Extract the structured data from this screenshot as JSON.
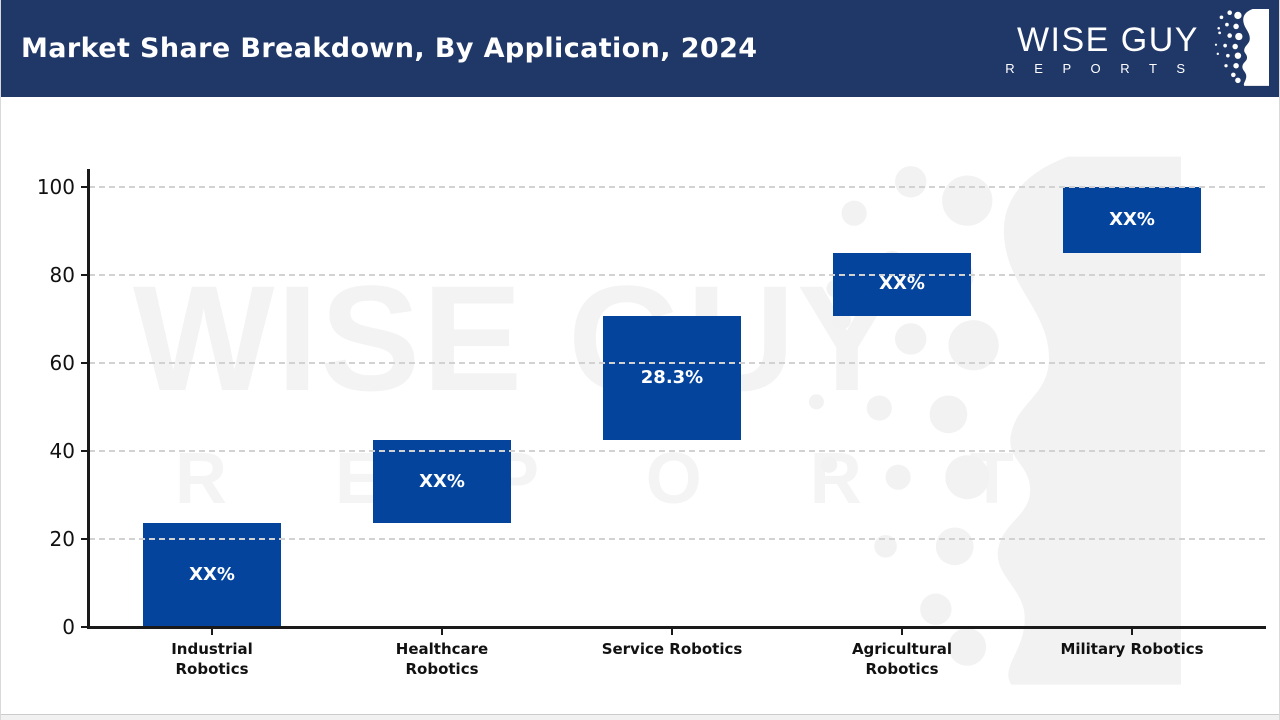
{
  "header": {
    "title": "Market Share Breakdown, By Application, 2024",
    "brand": {
      "wordmark": "WISE GUY",
      "subtext": "R E P O R T S"
    }
  },
  "watermark": {
    "line1": "WISE GUY",
    "line2": "R E P O R T S"
  },
  "colors": {
    "header_bg": "#203868",
    "bar": "#04449c",
    "bar_label_text": "#ffffff",
    "axis": "#1a1a1a",
    "gridline": "#d2d2d2",
    "watermark": "#f3f3f3"
  },
  "chart_data": {
    "type": "bar",
    "subtype": "floating-segment waterfall (each bar starts where previous ends)",
    "title": "Market Share Breakdown, By Application, 2024",
    "xlabel": "",
    "ylabel": "",
    "ylim": [
      0,
      105
    ],
    "yticks": [
      0,
      20,
      40,
      60,
      80,
      100
    ],
    "grid": "horizontal dashed gridlines at 20/40/60/80/100, drawn above bars",
    "legend": "none",
    "categories": [
      "Industrial Robotics",
      "Healthcare Robotics",
      "Service Robotics",
      "Agricultural Robotics",
      "Military Robotics"
    ],
    "bars": [
      {
        "category": "Industrial Robotics",
        "label_lines": [
          "Industrial",
          "Robotics"
        ],
        "start": 0,
        "end": 23.6,
        "value": 23.6,
        "display_label": "XX%"
      },
      {
        "category": "Healthcare Robotics",
        "label_lines": [
          "Healthcare",
          "Robotics"
        ],
        "start": 23.6,
        "end": 42.4,
        "value": 18.8,
        "display_label": "XX%"
      },
      {
        "category": "Service Robotics",
        "label_lines": [
          "Service Robotics"
        ],
        "start": 42.4,
        "end": 70.7,
        "value": 28.3,
        "display_label": "28.3%"
      },
      {
        "category": "Agricultural Robotics",
        "label_lines": [
          "Agricultural",
          "Robotics"
        ],
        "start": 70.7,
        "end": 85.0,
        "value": 14.3,
        "display_label": "XX%"
      },
      {
        "category": "Military Robotics",
        "label_lines": [
          "Military Robotics"
        ],
        "start": 85.0,
        "end": 100.0,
        "value": 15.0,
        "display_label": "XX%"
      }
    ]
  }
}
